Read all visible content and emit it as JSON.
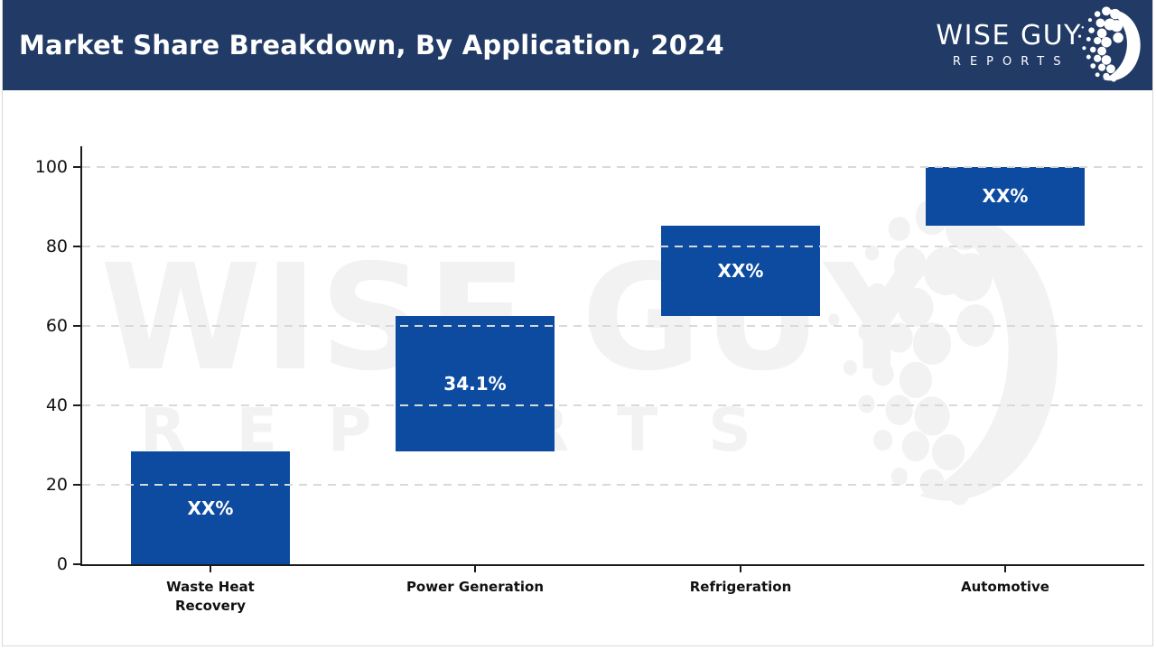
{
  "header": {
    "title": "Market Share Breakdown, By Application, 2024",
    "logo": {
      "wordmark": "WISE GUY",
      "subtext": "REPORTS"
    }
  },
  "watermark": {
    "wordmark": "WISE GUY",
    "subtext": "REPORTS"
  },
  "colors": {
    "header_bg": "#213a66",
    "bar": "#0c4ba0",
    "grid": "#d9d9d9",
    "axis": "#1b1b1b",
    "watermark": "#f2f2f2",
    "title_text": "#ffffff",
    "bar_label_text": "#ffffff"
  },
  "chart_data": {
    "type": "bar",
    "subtype": "floating-waterfall",
    "title": "Market Share Breakdown, By Application, 2024",
    "xlabel": "",
    "ylabel": "",
    "categories": [
      "Waste Heat\nRecovery",
      "Power Generation",
      "Refrigeration",
      "Automotive"
    ],
    "segments": [
      {
        "category": "Waste Heat Recovery",
        "start": 0,
        "end": 28.3,
        "value": 28.3,
        "label": "XX%"
      },
      {
        "category": "Power Generation",
        "start": 28.3,
        "end": 62.4,
        "value": 34.1,
        "label": "34.1%"
      },
      {
        "category": "Refrigeration",
        "start": 62.4,
        "end": 85.3,
        "value": 22.9,
        "label": "XX%"
      },
      {
        "category": "Automotive",
        "start": 85.3,
        "end": 100,
        "value": 14.7,
        "label": "XX%"
      }
    ],
    "y_ticks": [
      0,
      20,
      40,
      60,
      80,
      100
    ],
    "ylim": [
      0,
      100
    ],
    "grid": "horizontal-dashed",
    "legend_position": "none"
  }
}
